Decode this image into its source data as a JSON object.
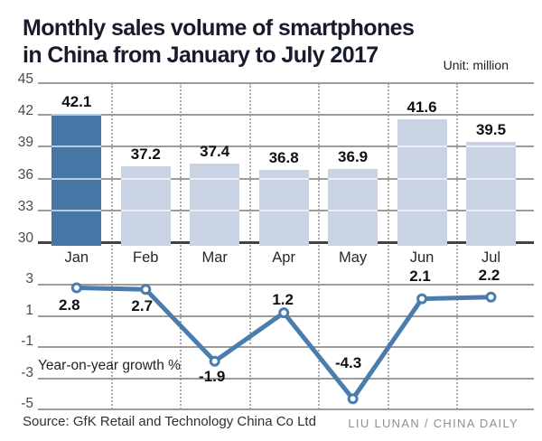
{
  "title": {
    "line1": "Monthly sales volume of smartphones",
    "line2": "in China from January to July 2017",
    "unit": "Unit: million"
  },
  "chart_data": {
    "type": "combo",
    "categories": [
      "Jan",
      "Feb",
      "Mar",
      "Apr",
      "May",
      "Jun",
      "Jul"
    ],
    "charts": [
      {
        "type": "bar",
        "name": "Monthly sales volume (million)",
        "values": [
          42.1,
          37.2,
          37.4,
          36.8,
          36.9,
          41.6,
          39.5
        ],
        "ylim": [
          30,
          45
        ],
        "yticks": [
          45,
          42,
          39,
          36,
          33,
          30
        ],
        "highlight_index": 0,
        "bar_color": "#c9d3e3",
        "highlight_color": "#4676a5",
        "grid": true,
        "gridline_color": "#9c9c9c",
        "axis_color": "#424242"
      },
      {
        "type": "line",
        "name": "Year-on-year growth %",
        "values": [
          2.8,
          2.7,
          -1.9,
          1.2,
          -4.3,
          2.1,
          2.2
        ],
        "ylim": [
          -5,
          3
        ],
        "yticks": [
          3,
          1,
          -1,
          -3,
          -5
        ],
        "line_color": "#4a7cad",
        "marker": "open-circle",
        "marker_fill": "#ffffff",
        "grid": true,
        "legend_position": "left-inside"
      }
    ]
  },
  "source": "Source: GfK Retail and Technology China Co Ltd",
  "credit": "LIU LUNAN / CHINA DAILY",
  "colors": {
    "title": "#171b2c",
    "tick_label": "#4b4b4b",
    "value_label": "#0f1116",
    "dotted_grid": "#ababab"
  }
}
